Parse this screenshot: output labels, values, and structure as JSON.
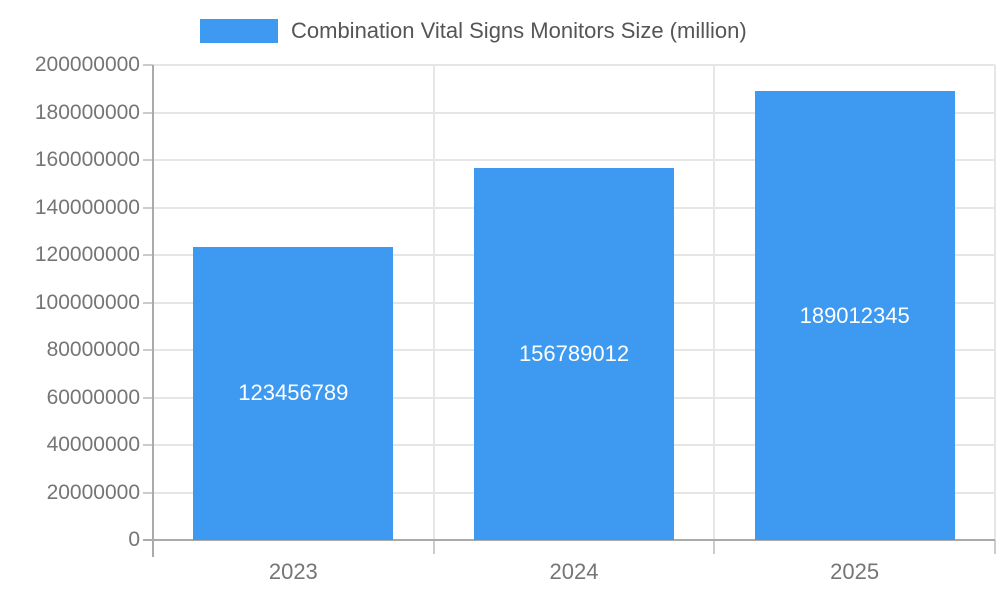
{
  "legend": {
    "label": "Combination Vital Signs Monitors Size (million)"
  },
  "colors": {
    "bar": "#3d9af0",
    "bar_label_text": "#ffffff",
    "axis_line": "#aaaaaa",
    "tick_line": "#cccccc",
    "grid_line": "#e6e6e6",
    "axis_text": "#757575",
    "legend_text": "#555555",
    "background": "#ffffff"
  },
  "chart_data": {
    "type": "bar",
    "title": "",
    "categories": [
      "2023",
      "2024",
      "2025"
    ],
    "series": [
      {
        "name": "Combination Vital Signs Monitors Size (million)",
        "values": [
          123456789,
          156789012,
          189012345
        ]
      }
    ],
    "data_labels": [
      "123456789",
      "156789012",
      "189012345"
    ],
    "xlabel": "",
    "ylabel": "",
    "ylim": [
      0,
      200000000
    ],
    "ytick_step": 20000000,
    "ytick_labels": [
      "0",
      "20000000",
      "40000000",
      "60000000",
      "80000000",
      "100000000",
      "120000000",
      "140000000",
      "160000000",
      "180000000",
      "200000000"
    ],
    "grid": true,
    "legend_position": "top"
  }
}
